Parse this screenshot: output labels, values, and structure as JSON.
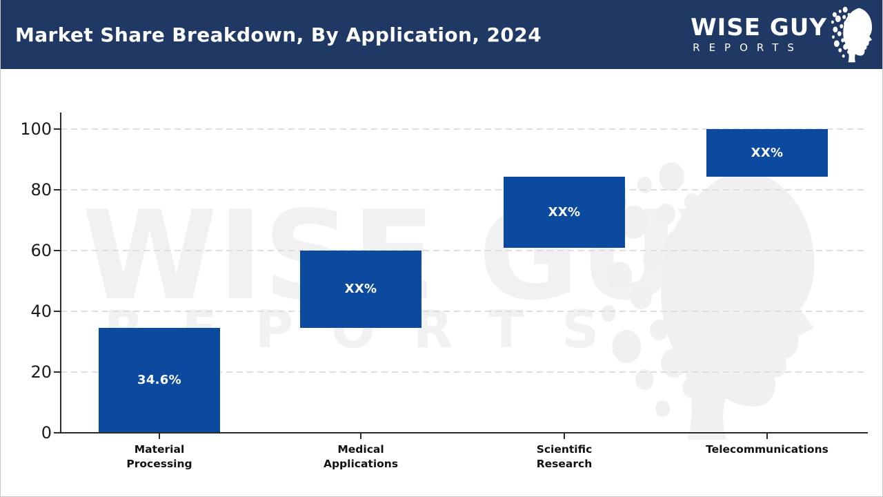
{
  "header": {
    "title": "Market Share Breakdown, By Application, 2024",
    "bg_color": "#1f3864",
    "logo": {
      "wordmark": "WISE GUY",
      "subtext": "REPORTS"
    }
  },
  "watermark": {
    "wordmark": "WISE GUY",
    "subtext": "REPORTS"
  },
  "chart_data": {
    "type": "bar",
    "subtype": "waterfall",
    "title": "Market Share Breakdown, By Application, 2024",
    "xlabel": "",
    "ylabel": "",
    "ylim": [
      0,
      100
    ],
    "y_ticks": [
      0,
      20,
      40,
      60,
      80,
      100
    ],
    "grid": "horizontal-dashed",
    "legend": "none",
    "bar_color": "#0b4a9e",
    "bar_label_color": "#ffffff",
    "categories": [
      "Material Processing",
      "Medical Applications",
      "Scientific Research",
      "Telecommunications"
    ],
    "category_lines": [
      [
        "Material",
        "Processing"
      ],
      [
        "Medical",
        "Applications"
      ],
      [
        "Scientific",
        "Research"
      ],
      [
        "Telecommunications"
      ]
    ],
    "segments": [
      {
        "category": "Material Processing",
        "start": 0,
        "end": 34.6,
        "label": "34.6%"
      },
      {
        "category": "Medical Applications",
        "start": 34.6,
        "end": 60,
        "label": "XX%"
      },
      {
        "category": "Scientific Research",
        "start": 61,
        "end": 84.3,
        "label": "XX%"
      },
      {
        "category": "Telecommunications",
        "start": 84.3,
        "end": 100,
        "label": "XX%"
      }
    ]
  }
}
